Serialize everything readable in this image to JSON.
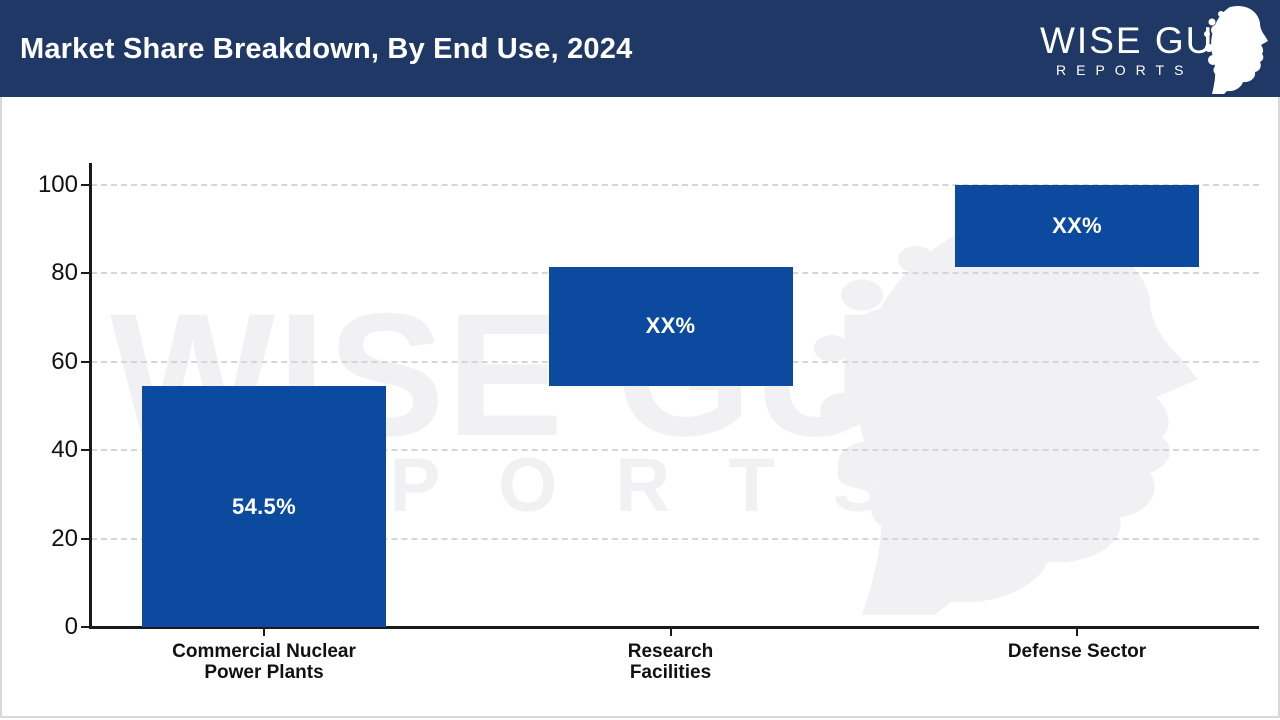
{
  "header": {
    "title": "Market Share Breakdown, By End Use, 2024",
    "logo": {
      "line1": "WISE GUY",
      "line2": "REPORTS"
    }
  },
  "watermark": {
    "line1": "WISE GUY",
    "line2": "REPORTS"
  },
  "colors": {
    "header_bg": "#1f3866",
    "bar_blue": "#0b4a9e",
    "watermark_gray": "#f1f1f3",
    "grid_gray": "#d6d6d6",
    "axis_black": "#1a1a1a"
  },
  "chart_data": {
    "type": "bar",
    "subtype": "waterfall",
    "title": "Market Share Breakdown, By End Use, 2024",
    "categories": [
      "Commercial Nuclear Power Plants",
      "Research Facilities",
      "Defense Sector"
    ],
    "categories_display": [
      [
        "Commercial Nuclear",
        "Power Plants"
      ],
      [
        "Research",
        "Facilities"
      ],
      [
        "Defense Sector"
      ]
    ],
    "segments": [
      {
        "start": 0,
        "end": 54.5,
        "label": "54.5%"
      },
      {
        "start": 54.5,
        "end": 81.5,
        "label": "XX%"
      },
      {
        "start": 81.5,
        "end": 100,
        "label": "XX%"
      }
    ],
    "ylim": [
      0,
      100
    ],
    "yticks": [
      0,
      20,
      40,
      60,
      80,
      100
    ],
    "xlabel": "",
    "ylabel": "",
    "grid": "horizontal-dashed",
    "legend": "none"
  }
}
